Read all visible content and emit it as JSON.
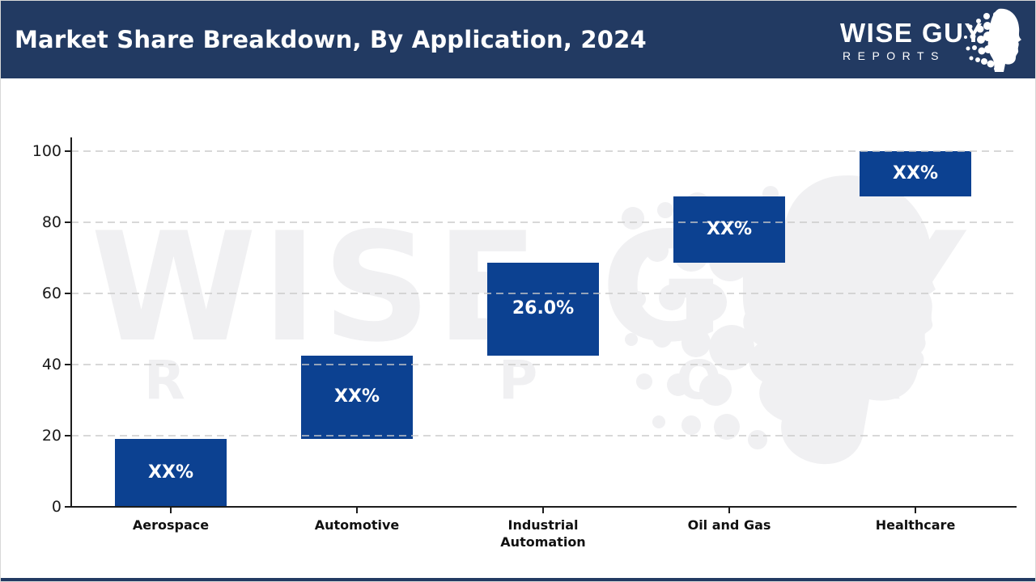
{
  "header": {
    "title": "Market Share Breakdown, By Application, 2024",
    "logo": {
      "line1": "WISE GUY",
      "line2": "REPORTS"
    }
  },
  "watermark": {
    "line1": "WISE GUY",
    "line2": "R E P O R T S"
  },
  "colors": {
    "header_bg": "#223a62",
    "bar": "#0c4191",
    "bar_label": "#ffffff",
    "axis": "#1c1c1c",
    "watermark": "#f0f0f2"
  },
  "chart_data": {
    "type": "bar",
    "subtype": "waterfall",
    "title": "Market Share Breakdown, By Application, 2024",
    "categories": [
      "Aerospace",
      "Automotive",
      "Industrial Automation",
      "Oil and Gas",
      "Healthcare"
    ],
    "category_label_lines": [
      [
        "Aerospace"
      ],
      [
        "Automotive"
      ],
      [
        "Industrial",
        "Automation"
      ],
      [
        "Oil and Gas"
      ],
      [
        "Healthcare"
      ]
    ],
    "segments": [
      {
        "category": "Aerospace",
        "start": 0,
        "end": 19,
        "label": "XX%"
      },
      {
        "category": "Automotive",
        "start": 19,
        "end": 42.6,
        "label": "XX%"
      },
      {
        "category": "Industrial Automation",
        "start": 42.6,
        "end": 68.6,
        "label": "26.0%"
      },
      {
        "category": "Oil and Gas",
        "start": 68.6,
        "end": 87.2,
        "label": "XX%"
      },
      {
        "category": "Healthcare",
        "start": 87.2,
        "end": 100,
        "label": "XX%"
      }
    ],
    "ylim": [
      0,
      100
    ],
    "yticks": [
      0,
      20,
      40,
      60,
      80,
      100
    ],
    "grid": true,
    "legend": false,
    "xlabel": "",
    "ylabel": ""
  }
}
